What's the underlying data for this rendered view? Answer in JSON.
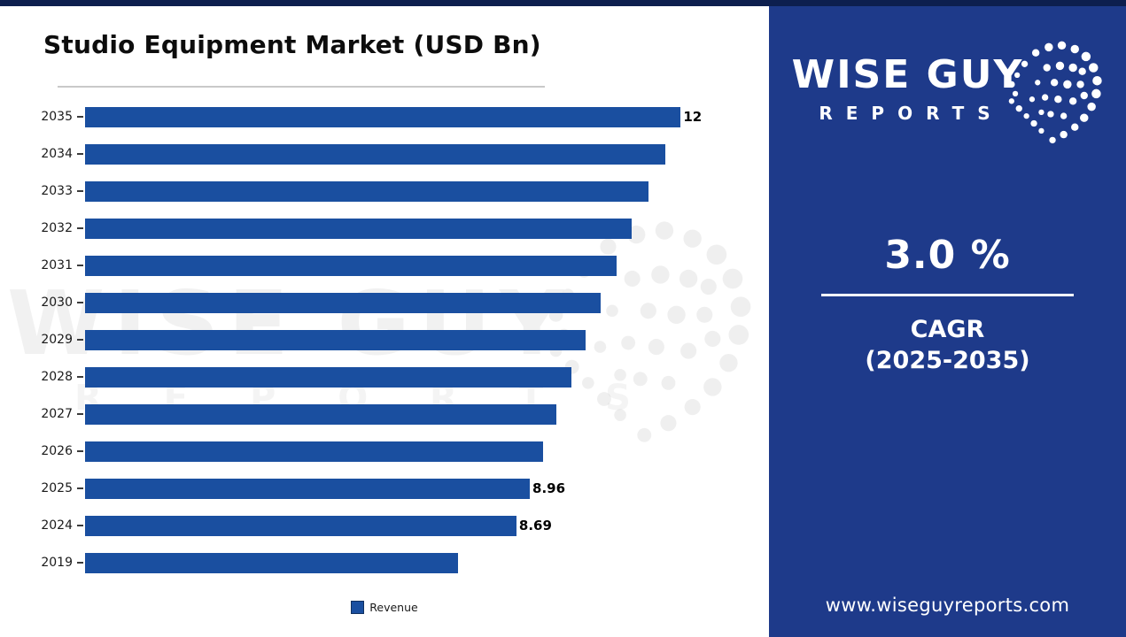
{
  "colors": {
    "bar": "#1a4fa0",
    "panel": "#1e3a8a",
    "top_strip": "#0d1f4e"
  },
  "chart_data": {
    "type": "bar",
    "orientation": "horizontal",
    "title": "Studio Equipment Market (USD Bn)",
    "categories": [
      "2035",
      "2034",
      "2033",
      "2032",
      "2031",
      "2030",
      "2029",
      "2028",
      "2027",
      "2026",
      "2025",
      "2024",
      "2019"
    ],
    "values": [
      12,
      11.69,
      11.35,
      11.02,
      10.7,
      10.38,
      10.08,
      9.79,
      9.5,
      9.23,
      8.96,
      8.69,
      7.52
    ],
    "value_labels": [
      "12",
      "",
      "",
      "",
      "",
      "",
      "",
      "",
      "",
      "",
      "8.96",
      "8.69",
      ""
    ],
    "xlim": [
      0,
      13.6
    ],
    "series_name": "Revenue",
    "legend_position": "bottom",
    "grid": false
  },
  "watermark": {
    "line1": "WISE GUY",
    "line2": "R E P O R T S"
  },
  "sidebar": {
    "logo_line1": "WISE GUY",
    "logo_line2": "REPORTS",
    "cagr_value": "3.0 %",
    "cagr_label": "CAGR",
    "cagr_period": "(2025-2035)",
    "website": "www.wiseguyreports.com"
  }
}
